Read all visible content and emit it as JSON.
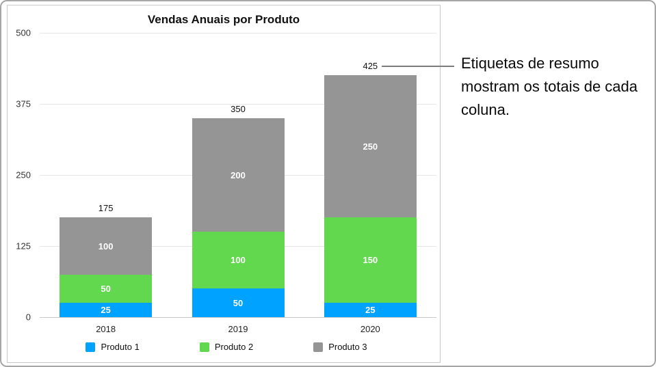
{
  "chart_data": {
    "type": "bar",
    "stacked": true,
    "title": "Vendas Anuais por Produto",
    "categories": [
      "2018",
      "2019",
      "2020"
    ],
    "series": [
      {
        "name": "Produto 1",
        "color": "#00a2ff",
        "values": [
          25,
          50,
          25
        ]
      },
      {
        "name": "Produto 2",
        "color": "#62d84e",
        "values": [
          50,
          100,
          150
        ]
      },
      {
        "name": "Produto 3",
        "color": "#959595",
        "values": [
          100,
          200,
          250
        ]
      }
    ],
    "totals": [
      175,
      350,
      425
    ],
    "y_ticks": [
      0,
      125,
      250,
      375,
      500
    ],
    "ylim": [
      0,
      500
    ],
    "grid": true,
    "legend_position": "bottom",
    "segment_label_color": "#ffffff"
  },
  "annotation": {
    "text": "Etiquetas de resumo mostram os totais de cada coluna.",
    "points_to_total": "425",
    "line_color": "#7d7d7d"
  }
}
